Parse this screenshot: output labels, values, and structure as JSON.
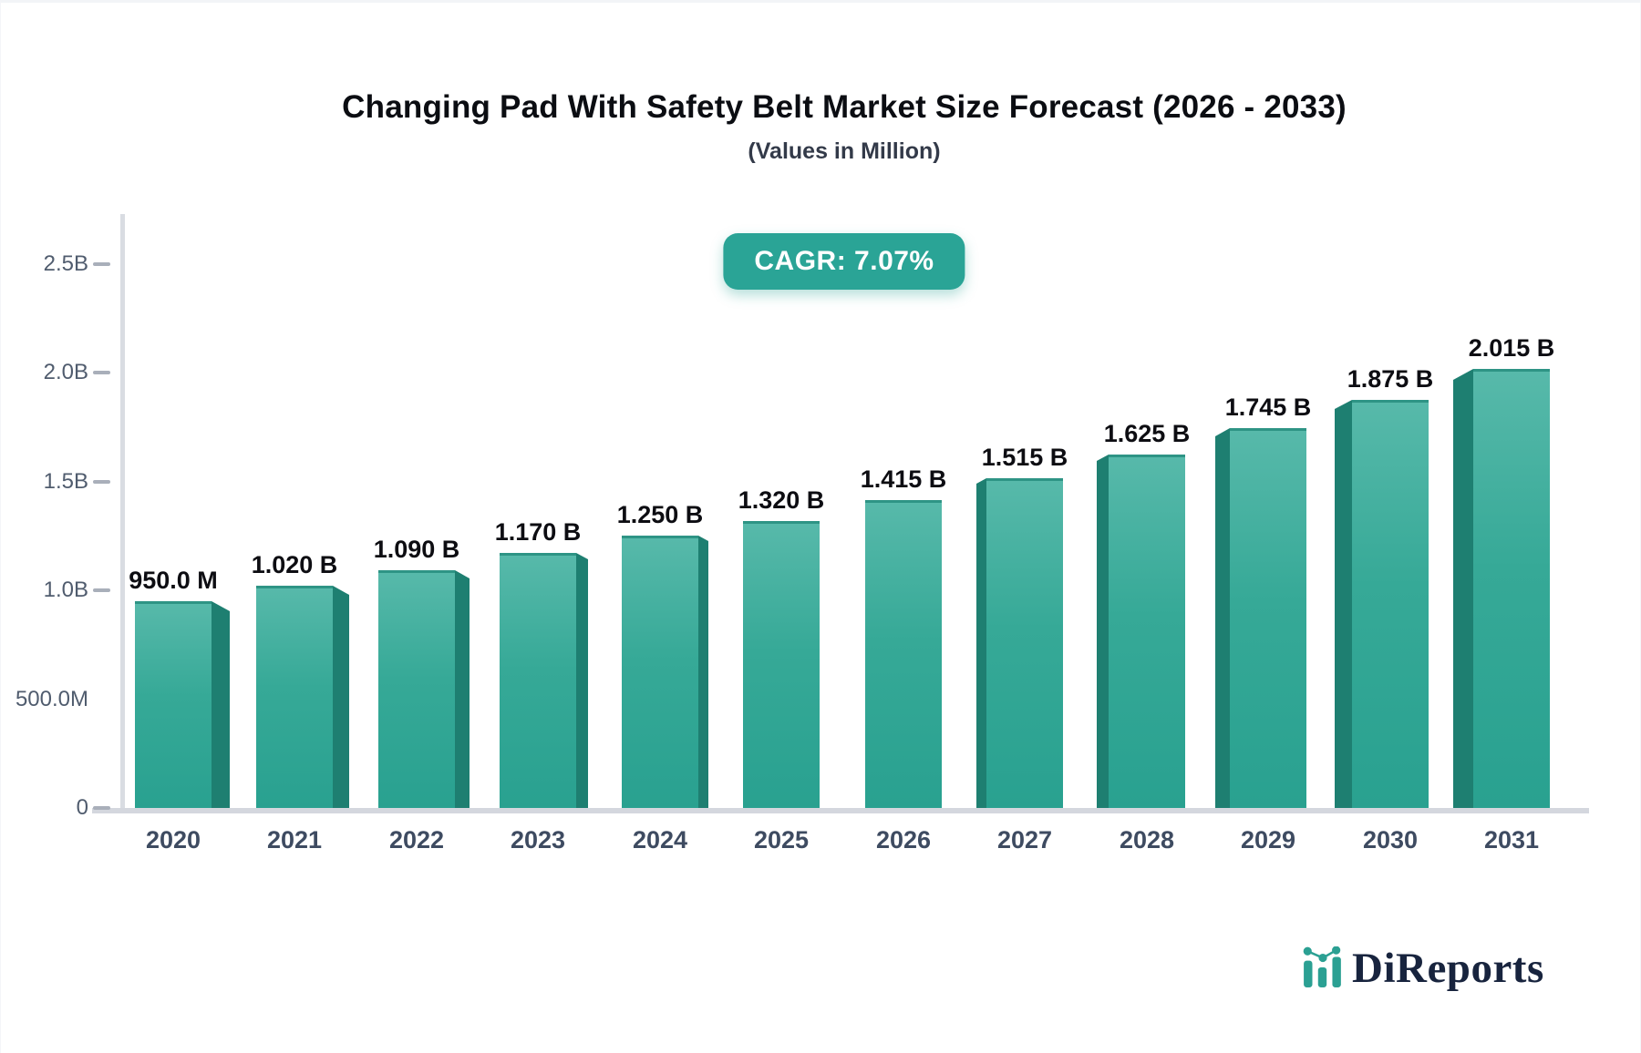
{
  "header": {
    "title": "Changing Pad With Safety Belt Market Size Forecast (2026 - 2033)",
    "subtitle": "(Values in Million)",
    "cagr_badge": "CAGR: 7.07%"
  },
  "chart_data": {
    "type": "bar",
    "title": "Changing Pad With Safety Belt Market Size Forecast (2026 - 2033)",
    "subtitle": "(Values in Million)",
    "annotation": "CAGR: 7.07%",
    "categories": [
      "2020",
      "2021",
      "2022",
      "2023",
      "2024",
      "2025",
      "2026",
      "2027",
      "2028",
      "2029",
      "2030",
      "2031"
    ],
    "values_billions": [
      0.95,
      1.02,
      1.09,
      1.17,
      1.25,
      1.32,
      1.415,
      1.515,
      1.625,
      1.745,
      1.875,
      2.015
    ],
    "value_labels": [
      "950.0 M",
      "1.020 B",
      "1.090 B",
      "1.170 B",
      "1.250 B",
      "1.320 B",
      "1.415 B",
      "1.515 B",
      "1.625 B",
      "1.745 B",
      "1.875 B",
      "2.015 B"
    ],
    "xlabel": "",
    "ylabel": "",
    "ylim": [
      0,
      2.5
    ],
    "grid": false,
    "legend": null,
    "y_ticks": [
      {
        "label": "0",
        "value": 0.0,
        "dash": true
      },
      {
        "label": "500.0M",
        "value": 0.5,
        "dash": false
      },
      {
        "label": "1.0B",
        "value": 1.0,
        "dash": true
      },
      {
        "label": "1.5B",
        "value": 1.5,
        "dash": true
      },
      {
        "label": "2.0B",
        "value": 2.0,
        "dash": true
      },
      {
        "label": "2.5B",
        "value": 2.5,
        "dash": true
      }
    ],
    "colors": {
      "bar_front_top": "#57b9aa",
      "bar_front_mid": "#36a997",
      "bar_front_bottom": "#29a190",
      "bar_side": "#1e7f71",
      "bar_top_edge": "#2e9485",
      "badge_bg": "#2aa496",
      "axis_line": "#d4d7de",
      "tick_dash": "#a9afba",
      "y_label_color": "#505c6e",
      "x_label_color": "#3e4b61",
      "value_label_color": "#0d0d12",
      "logo_teal": "#2ba093",
      "logo_navy": "#18243e"
    }
  },
  "logo": {
    "text": "DiReports",
    "icon": "bar-line-chart-icon"
  }
}
